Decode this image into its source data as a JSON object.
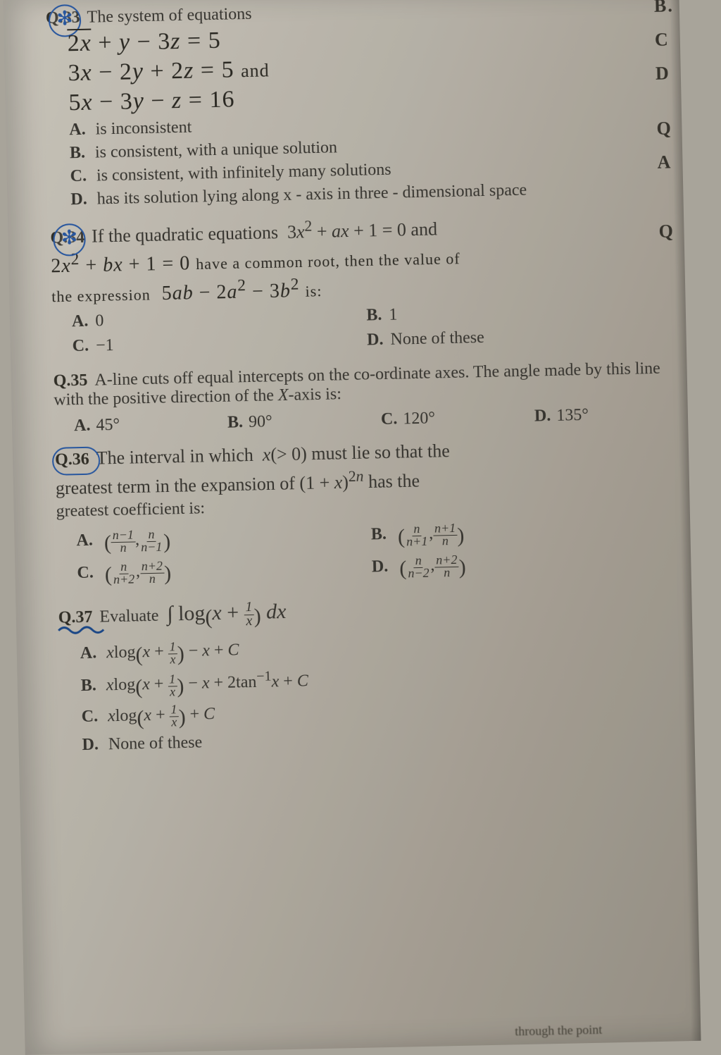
{
  "q33": {
    "label": "Q.33",
    "intro": "The system of equations",
    "eq1_html": "<span class='overbar'>2<i>x</i></span> + <i>y</i> − 3<i>z</i> = 5",
    "eq2_html": "3<i>x</i> − 2<i>y</i> + 2<i>z</i> = 5 <span style='font-size:26px'>and</span>",
    "eq3_html": "5<i>x</i> − 3<i>y</i> − <i>z</i> = 16",
    "options": [
      {
        "l": "A.",
        "t": "is inconsistent"
      },
      {
        "l": "B.",
        "t": "is consistent, with a unique solution"
      },
      {
        "l": "C.",
        "t": "is consistent, with infinitely many solutions"
      },
      {
        "l": "D.",
        "t": "has its solution lying along  x - axis in three - dimensional space"
      }
    ]
  },
  "q34": {
    "label": "Q.34",
    "line1_html": "If the quadratic equations &nbsp;3<i>x</i><sup>2</sup> + <i>a</i><i>x</i> + 1 = 0 and",
    "line2_html": "2<i>x</i><sup>2</sup> + <i>b</i><i>x</i> + 1 = 0 <span style='font-size:22px'>have a common root, then the value of</span>",
    "line3_html": "<span style='font-size:22px'>the expression</span> &nbsp;5<i>ab</i> − 2<i>a</i><sup>2</sup> − 3<i>b</i><sup>2</sup> <span style='font-size:22px'>is:</span>",
    "options": [
      {
        "l": "A.",
        "t": "0"
      },
      {
        "l": "B.",
        "t": "1"
      },
      {
        "l": "C.",
        "t": "−1"
      },
      {
        "l": "D.",
        "t": "None of these"
      }
    ]
  },
  "q35": {
    "label": "Q.35",
    "text_html": "A-line cuts off equal intercepts on the co-ordinate axes. The angle made by this line with the positive direction of the <i>X</i>-axis is:",
    "options": [
      {
        "l": "A.",
        "t": "45°"
      },
      {
        "l": "B.",
        "t": "90°"
      },
      {
        "l": "C.",
        "t": "120°"
      },
      {
        "l": "D.",
        "t": "135°"
      }
    ]
  },
  "q36": {
    "label": "Q.36",
    "line1_html": "The interval in which &nbsp;<i>x</i>(&gt; 0) must lie so that the",
    "line2_html": "greatest term in the expansion of (1 + <i>x</i>)<sup>2<i>n</i></sup> has the",
    "line3_html": "greatest coefficient is:",
    "opts": {
      "A": {
        "n1": "n−1",
        "d1": "n",
        "n2": "n",
        "d2": "n−1"
      },
      "B": {
        "n1": "n",
        "d1": "n+1",
        "n2": "n+1",
        "d2": "n"
      },
      "C": {
        "n1": "n",
        "d1": "n+2",
        "n2": "n+2",
        "d2": "n"
      },
      "D": {
        "n1": "n",
        "d1": "n−2",
        "n2": "n+2",
        "d2": "n"
      }
    }
  },
  "q37": {
    "label": "Q.37",
    "intro": "Evaluate",
    "integral_html": "∫ log<span class='paren'>(</span><i>x</i> + <span class='frac' style='font-size:20px'><span class='n'>1</span><br><span class='d'><i>x</i></span></span><span class='paren'>)</span> <i>dx</i>",
    "options": [
      {
        "l": "A.",
        "html": "<i>x</i>log<span class='paren'>(</span><i>x</i> + <span class='frac'><span class='n'>1</span><br><span class='d'><i>x</i></span></span><span class='paren'>)</span> − <i>x</i> + <i>C</i>"
      },
      {
        "l": "B.",
        "html": "<i>x</i>log<span class='paren'>(</span><i>x</i> + <span class='frac'><span class='n'>1</span><br><span class='d'><i>x</i></span></span><span class='paren'>)</span> − <i>x</i> + 2tan<sup>−1</sup><i>x</i> + <i>C</i>"
      },
      {
        "l": "C.",
        "html": "<i>x</i>log<span class='paren'>(</span><i>x</i> + <span class='frac'><span class='n'>1</span><br><span class='d'><i>x</i></span></span><span class='paren'>)</span> + <i>C</i>"
      },
      {
        "l": "D.",
        "html": "None of these"
      }
    ]
  },
  "edge_letters": [
    "B.",
    "C",
    "D",
    "Q",
    "A",
    "Q"
  ],
  "bottom_text": "through the point"
}
